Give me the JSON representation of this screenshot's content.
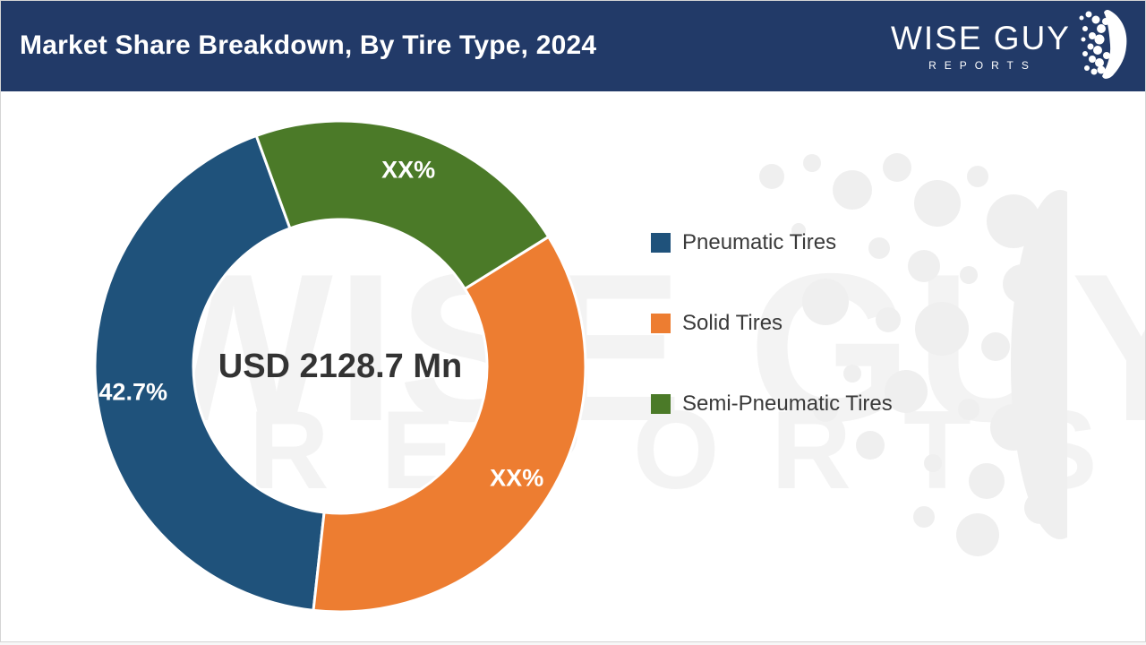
{
  "header": {
    "title": "Market Share Breakdown, By Tire Type, 2024",
    "logo": {
      "wordmark": "WISE GUY",
      "tagline": "REPORTS"
    }
  },
  "watermark": {
    "wordmark": "WISE GUY",
    "tagline": "REPORTS"
  },
  "chart_data": {
    "type": "pie",
    "variant": "donut",
    "title": "Market Share Breakdown, By Tire Type, 2024",
    "center_label": "USD 2128.7 Mn",
    "legend_position": "right",
    "start_angle_deg": 110,
    "direction": "counterclockwise",
    "segments": [
      {
        "label": "Pneumatic Tires",
        "display_label": "42.7%",
        "value_pct": 42.7,
        "color": "#1F527B"
      },
      {
        "label": "Solid Tires",
        "display_label": "XX%",
        "value_pct": 35.6,
        "color": "#ED7D31"
      },
      {
        "label": "Semi-Pneumatic Tires",
        "display_label": "XX%",
        "value_pct": 21.7,
        "color": "#4B7A28"
      }
    ]
  },
  "colors": {
    "header_bg": "#223A68",
    "slice_blue": "#1F527B",
    "slice_orange": "#ED7D31",
    "slice_green": "#4B7A28",
    "text_dark": "#333333",
    "watermark_gray": "#F3F3F3",
    "frame_border": "#D5D5D5"
  }
}
